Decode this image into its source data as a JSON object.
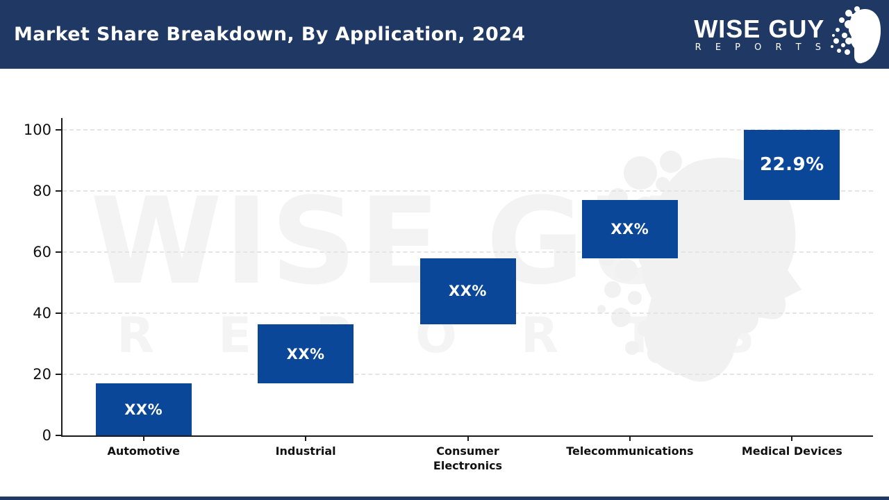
{
  "header": {
    "title": "Market Share Breakdown, By Application, 2024",
    "bg_color": "#1f3864",
    "logo": {
      "line1": "WISE GUY",
      "line2": "R E P O R T S"
    }
  },
  "watermark": {
    "line1": "WISE GUY",
    "line2": "R E P O R T S",
    "color": "#f3f3f3"
  },
  "chart_data": {
    "type": "bar",
    "subtype": "waterfall",
    "title": "Market Share Breakdown, By Application, 2024",
    "categories": [
      "Automotive",
      "Industrial",
      "Consumer Electronics",
      "Telecommunications",
      "Medical Devices"
    ],
    "categories_display": [
      [
        "Automotive"
      ],
      [
        "Industrial"
      ],
      [
        "Consumer",
        "Electronics"
      ],
      [
        "Telecommunications"
      ],
      [
        "Medical Devices"
      ]
    ],
    "segments": [
      {
        "category": "Automotive",
        "start": 0,
        "end": 17.0,
        "label": "XX%"
      },
      {
        "category": "Industrial",
        "start": 17.0,
        "end": 36.4,
        "label": "XX%"
      },
      {
        "category": "Consumer Electronics",
        "start": 36.4,
        "end": 58.0,
        "label": "XX%"
      },
      {
        "category": "Telecommunications",
        "start": 58.0,
        "end": 77.1,
        "label": "XX%"
      },
      {
        "category": "Medical Devices",
        "start": 77.1,
        "end": 100.0,
        "label": "22.9%",
        "value": 22.9
      }
    ],
    "yticks": [
      0,
      20,
      40,
      60,
      80,
      100
    ],
    "ylim": [
      0,
      104
    ],
    "xlabel": "",
    "ylabel": "",
    "legend": "none",
    "grid": "horizontal-dashed",
    "bar_color": "#0b4798",
    "bar_label_color": "#ffffff",
    "grid_color": "#e4e4e4",
    "axis_color": "#1a1a1a"
  },
  "footer": {
    "bg_color": "#1f3864"
  }
}
